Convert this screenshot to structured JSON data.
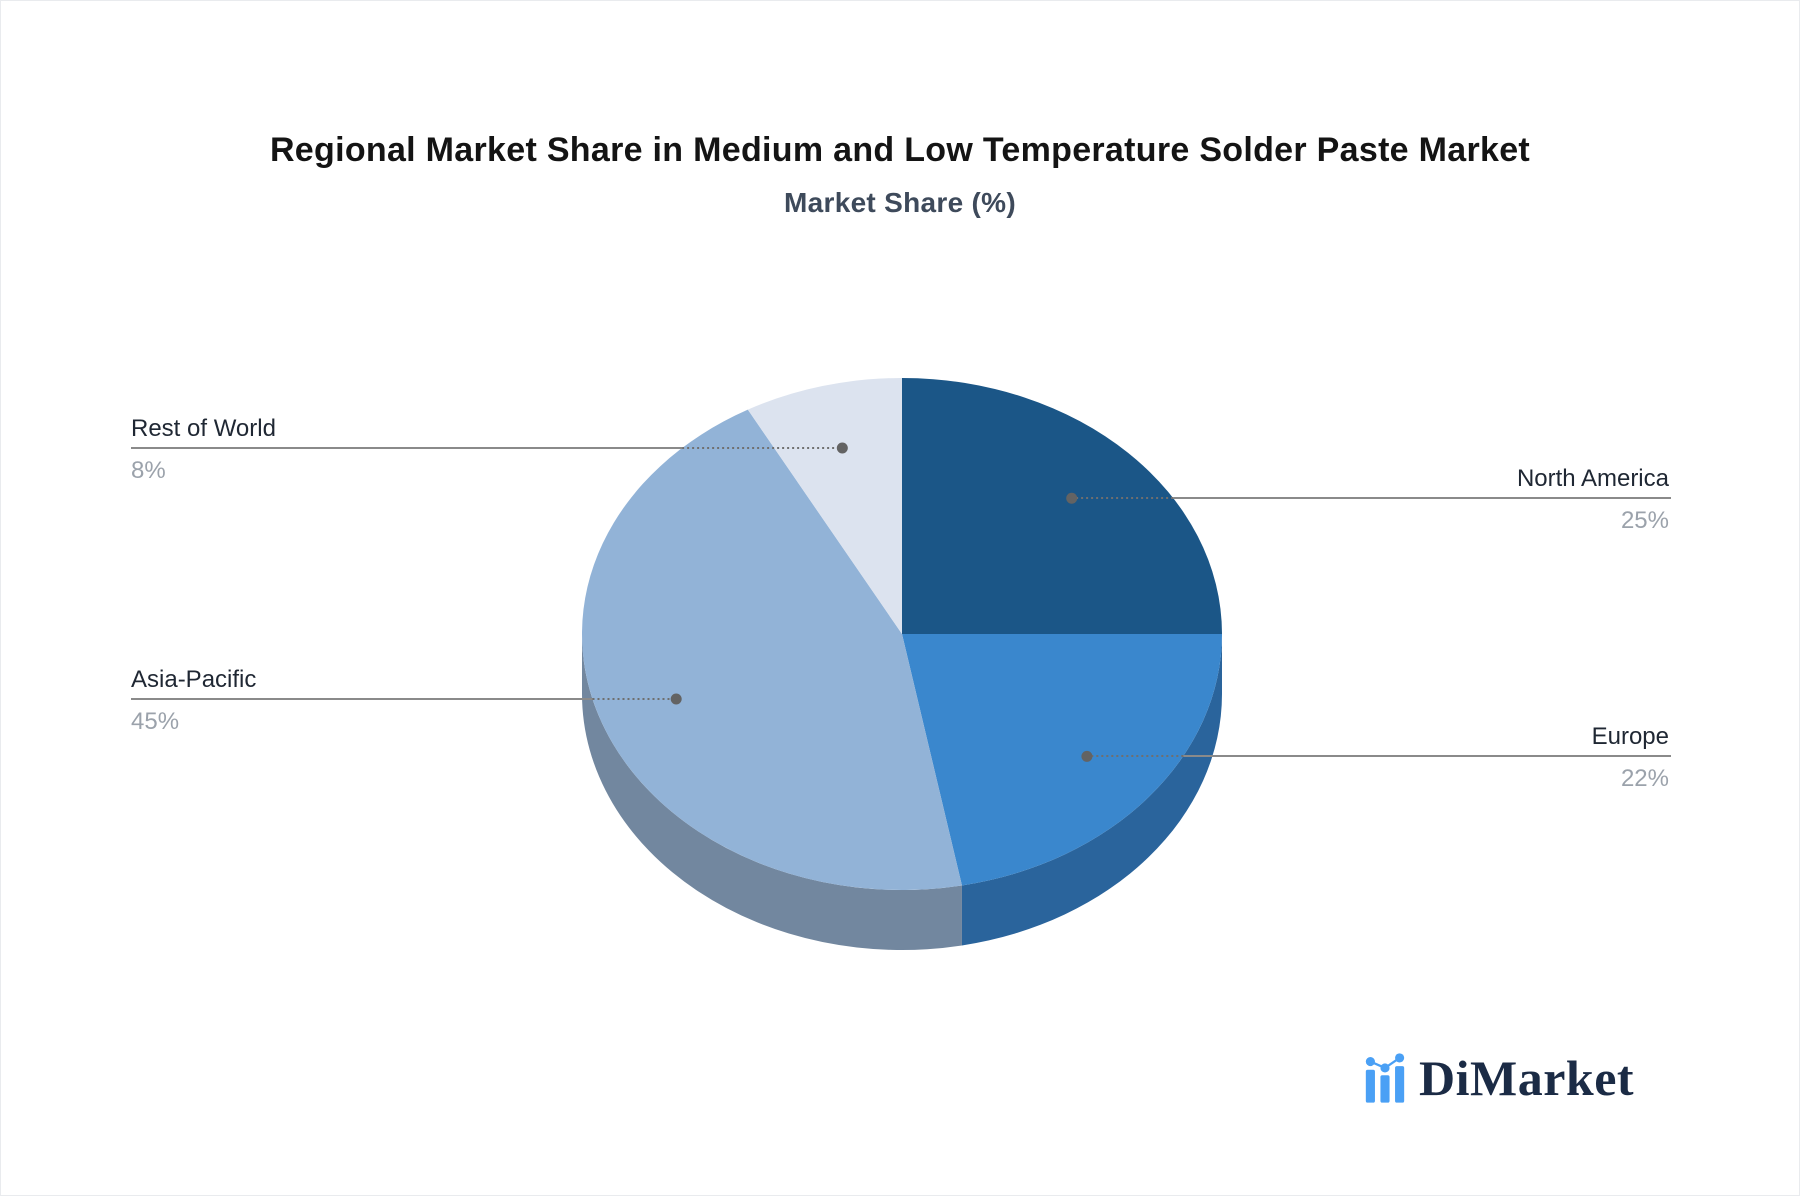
{
  "chart_data": {
    "type": "pie",
    "title": "Regional Market Share in Medium and Low Temperature Solder Paste Market",
    "subtitle": "Market Share (%)",
    "unit": "percent",
    "start_angle": "12-oclock",
    "direction": "clockwise",
    "effect": "3d-depth",
    "legend_position": "callout-labels",
    "slices": [
      {
        "label": "North America",
        "value": 25,
        "pct_text": "25%",
        "color": "#1B5687",
        "rim_color": "#164A75"
      },
      {
        "label": "Europe",
        "value": 22,
        "pct_text": "22%",
        "color": "#3A87CD",
        "rim_color": "#2A649C"
      },
      {
        "label": "Asia-Pacific",
        "value": 45,
        "pct_text": "45%",
        "color": "#92B3D7",
        "rim_color": "#72879F"
      },
      {
        "label": "Rest of World",
        "value": 8,
        "pct_text": "8%",
        "color": "#DCE3EF",
        "rim_color": "#BAC4D4"
      }
    ]
  },
  "logo": {
    "text": "DiMarket",
    "icon": "bar-chart-icon",
    "icon_color": "#4AA0F5",
    "text_color": "#1B2B45"
  },
  "colors": {
    "background": "#FFFFFF",
    "title_text": "#141414",
    "subtitle_text": "#3E4A5B",
    "label_text": "#1F2733",
    "percent_text": "#9BA2AB",
    "leader_line": "#8A8A8A",
    "leader_dot": "#636363"
  }
}
